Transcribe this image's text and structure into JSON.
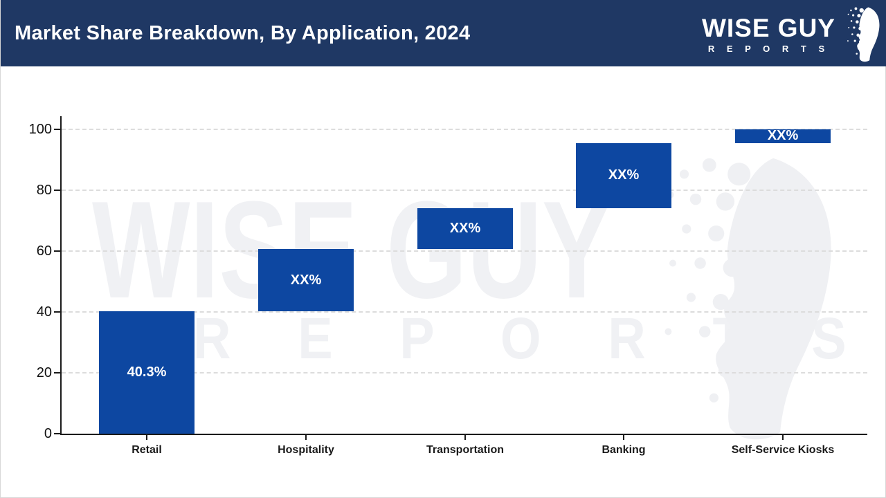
{
  "header": {
    "title": "Market Share Breakdown, By Application, 2024",
    "logo_line1": "WISE GUY",
    "logo_line2": "R E P O R T S"
  },
  "watermark": {
    "line1": "WISE GUY",
    "line2": "R E P O R T S"
  },
  "chart_data": {
    "type": "bar",
    "subtype": "waterfall",
    "title": "Market Share Breakdown, By Application, 2024",
    "categories": [
      "Retail",
      "Hospitality",
      "Transportation",
      "Banking",
      "Self-Service Kiosks"
    ],
    "segments": [
      {
        "category": "Retail",
        "start": 0,
        "end": 40.3,
        "label": "40.3%"
      },
      {
        "category": "Hospitality",
        "start": 40.3,
        "end": 60.6,
        "label": "XX%"
      },
      {
        "category": "Transportation",
        "start": 60.6,
        "end": 74.1,
        "label": "XX%"
      },
      {
        "category": "Banking",
        "start": 74.1,
        "end": 95.5,
        "label": "XX%"
      },
      {
        "category": "Self-Service Kiosks",
        "start": 95.5,
        "end": 100,
        "label": "XX%"
      }
    ],
    "xlabel": "",
    "ylabel": "",
    "yticks": [
      0,
      20,
      40,
      60,
      80,
      100
    ],
    "ylim": [
      0,
      105
    ],
    "grid": "horizontal-dashed",
    "legend": "none",
    "bar_color": "#0d47a1",
    "bar_label_color": "#ffffff",
    "axis_color": "#1a1a1a",
    "grid_color": "#dcdcdc"
  }
}
